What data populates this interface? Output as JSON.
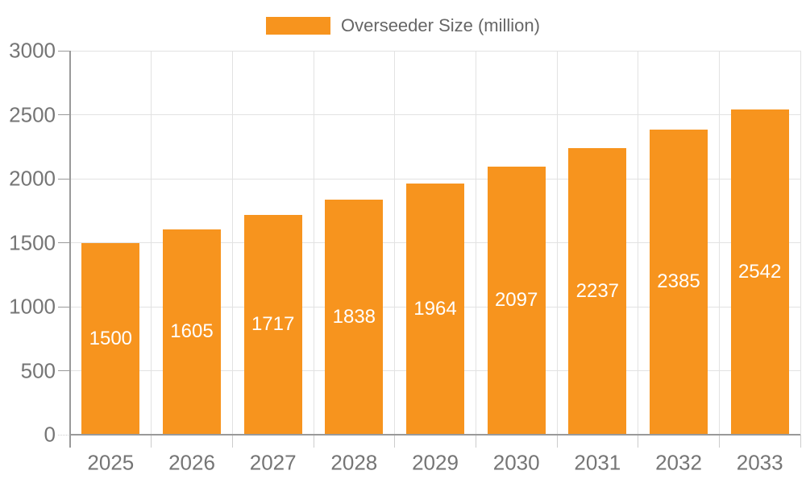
{
  "chart_data": {
    "type": "bar",
    "title": "",
    "legend": "Overseeder Size (million)",
    "legend_position": "top",
    "categories": [
      "2025",
      "2026",
      "2027",
      "2028",
      "2029",
      "2030",
      "2031",
      "2032",
      "2033"
    ],
    "values": [
      1500,
      1605,
      1717,
      1838,
      1964,
      2097,
      2237,
      2385,
      2542
    ],
    "xlabel": "",
    "ylabel": "",
    "ylim": [
      0,
      3000
    ],
    "yticks": [
      0,
      500,
      1000,
      1500,
      2000,
      2500,
      3000
    ],
    "grid": true,
    "bar_color": "#F7941E",
    "bar_label_color": "#FFFFFF"
  },
  "colors": {
    "accent_orange": "#F7941E",
    "grid_line": "#E2E2E2",
    "axis_line": "#999999",
    "tick_mark": "#CCCCCC",
    "tick_label": "#757575",
    "legend_text": "#666666",
    "background": "#FFFFFF"
  }
}
